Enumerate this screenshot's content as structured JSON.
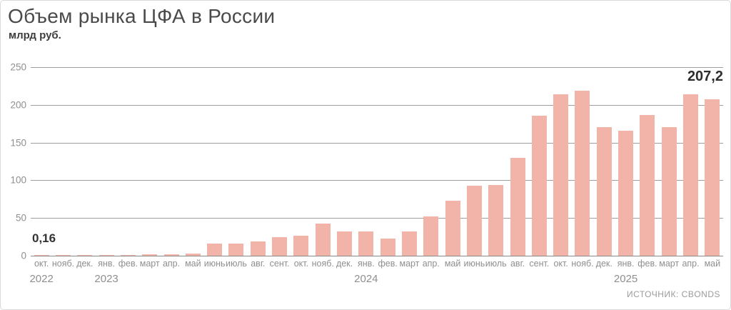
{
  "title": "Объем рынка ЦФА в России",
  "subtitle": "млрд руб.",
  "source": "ИСТОЧНИК: CBONDS",
  "annotations": {
    "first_bar_label": "0,16",
    "last_bar_label": "207,2"
  },
  "colors": {
    "bar": "#f2b3a9",
    "grid": "#9e9e9e",
    "axis_text": "#8f8f8f",
    "title_text": "#4a4a4a",
    "annotation_text": "#333333"
  },
  "chart_data": {
    "type": "bar",
    "title": "Объем рынка ЦФА в России",
    "ylabel": "млрд руб.",
    "ylim": [
      0,
      250
    ],
    "yticks": [
      0,
      50,
      100,
      150,
      200,
      250
    ],
    "grid": true,
    "legend": false,
    "categories": [
      "окт.",
      "нояб.",
      "дек.",
      "янв.",
      "фев.",
      "март",
      "апр.",
      "май",
      "июнь",
      "июль",
      "авг.",
      "сент.",
      "окт.",
      "нояб.",
      "дек.",
      "янв.",
      "фев.",
      "март",
      "апр.",
      "май",
      "июнь",
      "июль",
      "авг.",
      "сент.",
      "окт.",
      "нояб.",
      "дек.",
      "янв.",
      "фев.",
      "март",
      "апр.",
      "май"
    ],
    "values": [
      0.16,
      1.4,
      1.0,
      1.2,
      1.4,
      1.8,
      2.2,
      2.8,
      16,
      16,
      19,
      25,
      27,
      43,
      32,
      32,
      23,
      32,
      52,
      73,
      93,
      94,
      130,
      186,
      214,
      219,
      170,
      166,
      187,
      170,
      214,
      207.2
    ],
    "year_markers": [
      {
        "label": "2022",
        "index": 0
      },
      {
        "label": "2023",
        "index": 3
      },
      {
        "label": "2024",
        "index": 15
      },
      {
        "label": "2025",
        "index": 27
      }
    ]
  }
}
